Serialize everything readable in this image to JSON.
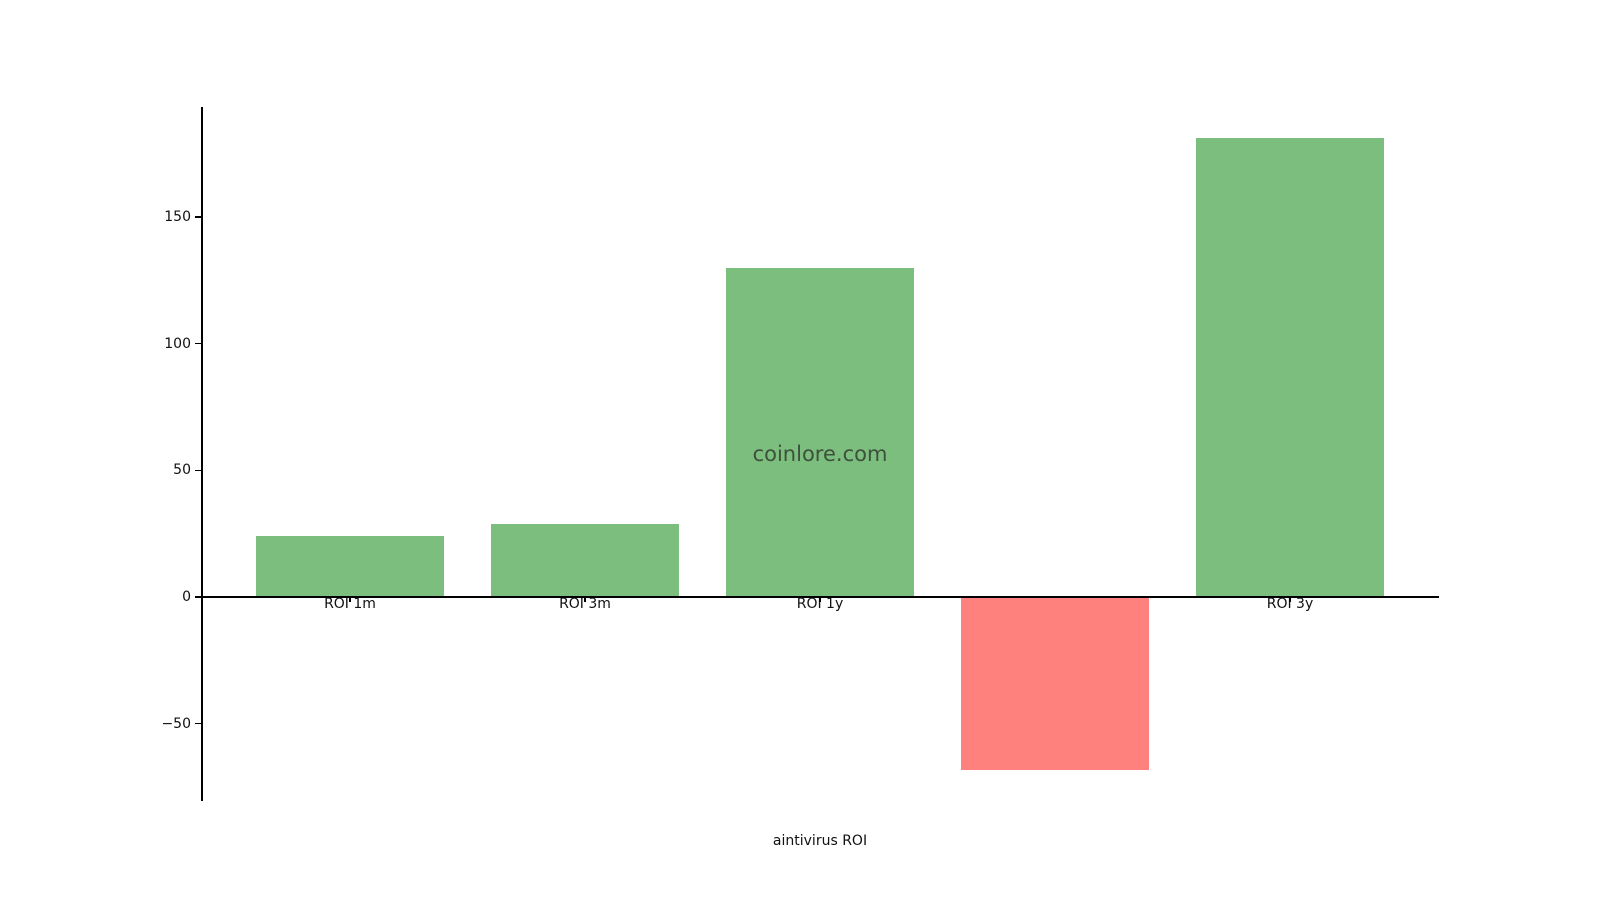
{
  "figure": {
    "background": "#ffffff",
    "watermark": "coinlore.com"
  },
  "chart_data": {
    "type": "bar",
    "title": "",
    "xlabel": "aintivirus ROI",
    "ylabel": "",
    "categories": [
      "ROI 1m",
      "ROI 3m",
      "ROI 1y",
      "",
      "ROI 3y"
    ],
    "values": [
      24,
      29,
      130,
      -68,
      181
    ],
    "bar_colors": [
      "#7cbe7d",
      "#7cbe7d",
      "#7cbe7d",
      "#fe817d",
      "#7cbe7d"
    ],
    "positive_color": "#7cbe7d",
    "negative_color": "#fe817d",
    "y_tick_labels": [
      "150",
      "100",
      "50",
      "0",
      "−50"
    ],
    "y_tick_values": [
      150,
      100,
      50,
      0,
      -50
    ],
    "ylim": [
      -80,
      193
    ],
    "grid": false,
    "legend": false,
    "notes": "fourth bar's x tick label is hidden behind the negative (red) bar"
  }
}
